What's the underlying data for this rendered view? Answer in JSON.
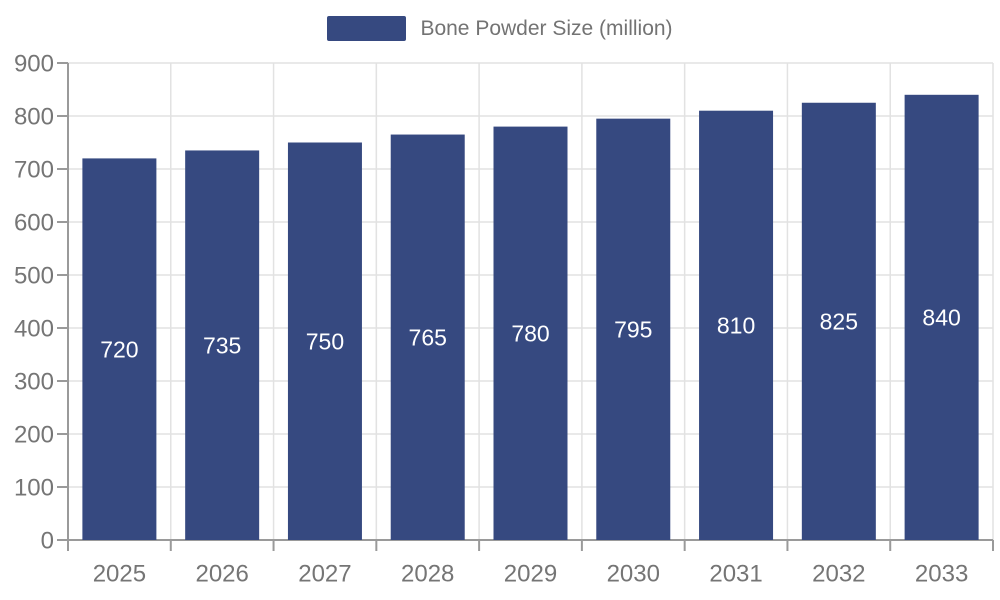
{
  "legend": {
    "label": "Bone Powder Size (million)"
  },
  "colors": {
    "bar": "#364980",
    "bar_label": "#ffffff",
    "axis_label": "#757575",
    "legend_text": "#737373",
    "grid_line": "#e2e2e2",
    "axis_line": "#9a9a9a",
    "background": "#ffffff"
  },
  "chart_data": {
    "type": "bar",
    "title": "",
    "legend": "Bone Powder Size (million)",
    "series_name": "Bone Powder Size (million)",
    "categories": [
      "2025",
      "2026",
      "2027",
      "2028",
      "2029",
      "2030",
      "2031",
      "2032",
      "2033"
    ],
    "values": [
      720,
      735,
      750,
      765,
      780,
      795,
      810,
      825,
      840
    ],
    "xlabel": "",
    "ylabel": "",
    "ylim": [
      0,
      900
    ],
    "y_tick_interval": 100,
    "y_ticks": [
      0,
      100,
      200,
      300,
      400,
      500,
      600,
      700,
      800,
      900
    ],
    "grid": true,
    "legend_position": "top-center",
    "bar_value_labels": "inside-center"
  }
}
